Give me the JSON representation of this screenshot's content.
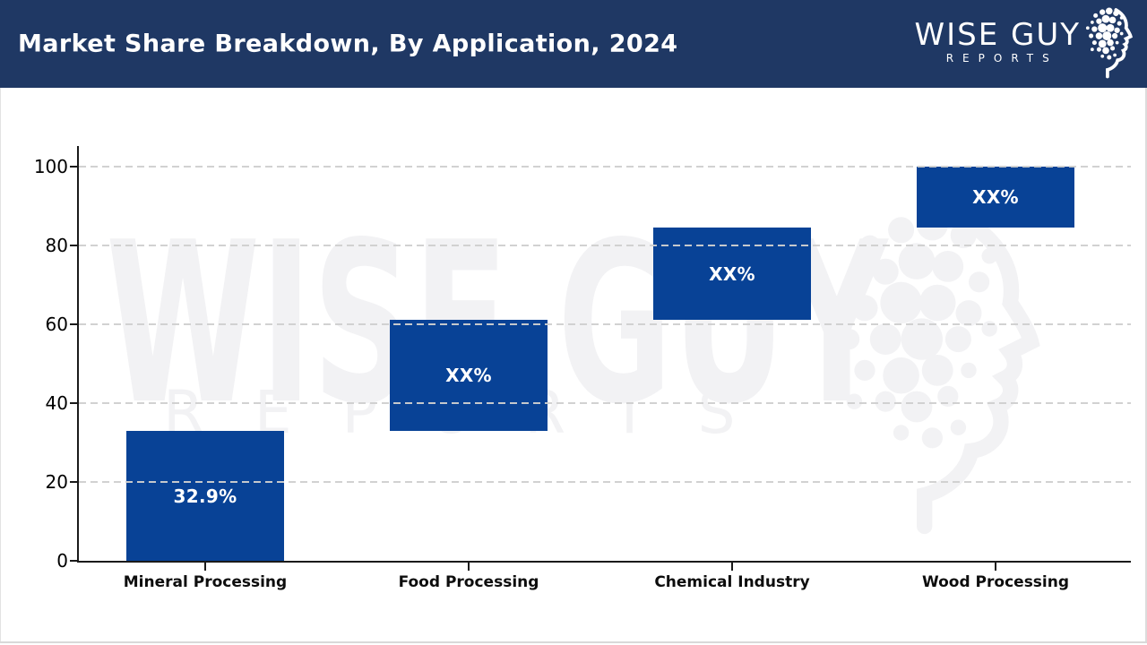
{
  "header": {
    "title": "Market Share Breakdown, By Application, 2024",
    "bg_color": "#1f3864",
    "logo": {
      "line1": "WISE GUY",
      "line2": "REPORTS"
    }
  },
  "watermark": {
    "line1": "WISE GUY",
    "line2": "REPORTS"
  },
  "chart_data": {
    "type": "bar",
    "subtype": "waterfall",
    "title": "Market Share Breakdown, By Application, 2024",
    "xlabel": "",
    "ylabel": "",
    "categories": [
      "Mineral Processing",
      "Food Processing",
      "Chemical Industry",
      "Wood Processing"
    ],
    "series": [
      {
        "name": "Market Share (%)",
        "segments": [
          {
            "category": "Mineral Processing",
            "start": 0,
            "end": 32.9,
            "label": "32.9%"
          },
          {
            "category": "Food Processing",
            "start": 32.9,
            "end": 61.0,
            "label": "XX%"
          },
          {
            "category": "Chemical Industry",
            "start": 61.0,
            "end": 84.5,
            "label": "XX%"
          },
          {
            "category": "Wood Processing",
            "start": 84.5,
            "end": 100,
            "label": "XX%"
          }
        ]
      }
    ],
    "yticks": [
      0,
      20,
      40,
      60,
      80,
      100
    ],
    "ylim": [
      0,
      105
    ],
    "grid": "horizontal-dashed",
    "legend": "none",
    "colors": {
      "bar": "#084296",
      "bar_label": "#ffffff",
      "gridline": "#cfcfcf",
      "axis": "#1a1a1a",
      "tick_label": "#000000"
    }
  }
}
